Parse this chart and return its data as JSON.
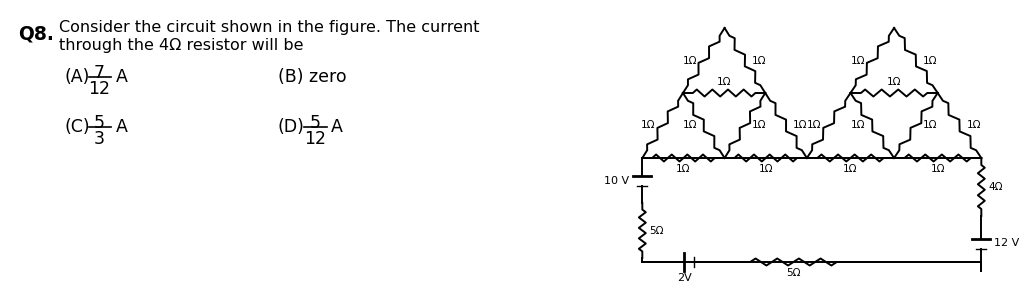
{
  "title_q": "Q8.",
  "question_line1": "Consider the circuit shown in the figure. The current",
  "question_line2": "through the 4Ω resistor will be",
  "option_A_num": "7",
  "option_A_den": "12",
  "option_A_unit": "A",
  "option_B": "zero",
  "option_C_num": "5",
  "option_C_den": "3",
  "option_C_unit": "A",
  "option_D_num": "5",
  "option_D_den": "12",
  "option_D_unit": "A",
  "bg_color": "#ffffff",
  "text_color": "#000000",
  "font_size_question": 11.5,
  "font_size_options": 12.5,
  "font_size_q_label": 13.5,
  "font_size_circuit": 7.5
}
